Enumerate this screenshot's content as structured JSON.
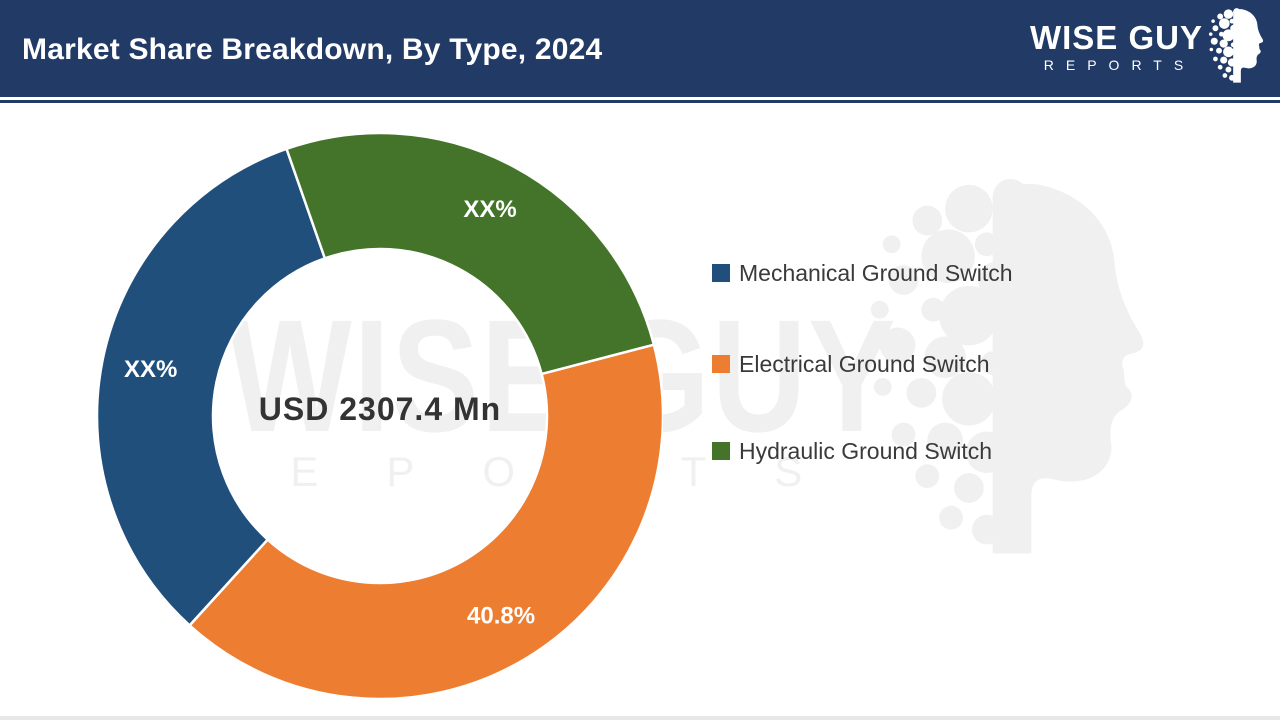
{
  "header": {
    "title": "Market Share Breakdown, By Type, 2024",
    "logo": {
      "line1": "WISE GUY",
      "line2": "REPORTS"
    }
  },
  "watermark": {
    "line1": "WISE GUY",
    "line2": "REPORTS"
  },
  "chart_data": {
    "type": "pie",
    "donut": true,
    "title": "Market Share Breakdown, By Type, 2024",
    "center_label": "USD 2307.4 Mn",
    "legend_position": "right",
    "start_angle_deg": 75.4,
    "slice_order": [
      1,
      0,
      2
    ],
    "series": [
      {
        "name": "Mechanical Ground Switch",
        "label": "XX%",
        "value_pct": 32.9,
        "color": "#204F7C"
      },
      {
        "name": "Electrical Ground Switch",
        "label": "40.8%",
        "value_pct": 40.8,
        "color": "#ED7D31"
      },
      {
        "name": "Hydraulic Ground Switch",
        "label": "XX%",
        "value_pct": 26.3,
        "color": "#44732A"
      }
    ]
  },
  "colors": {
    "header_bg": "#223A66",
    "watermark": "#F0F0F0",
    "legend_text": "#3A3A3A",
    "center_text": "#333333",
    "slice_divider": "#FFFFFF"
  }
}
